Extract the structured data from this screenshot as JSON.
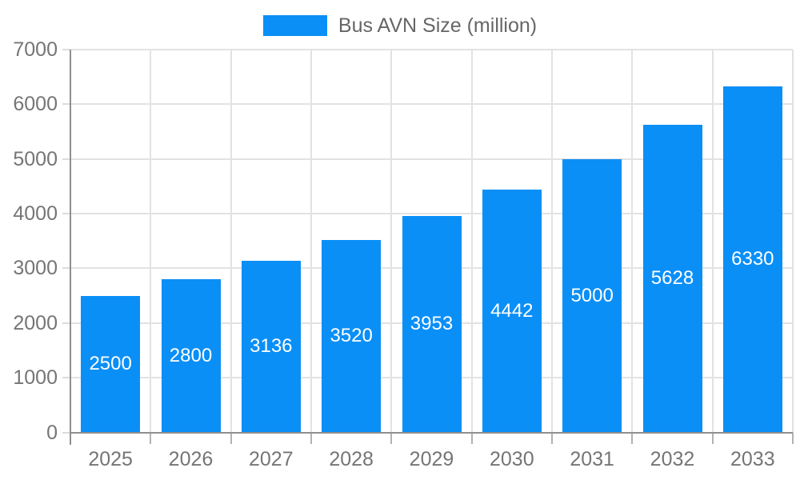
{
  "legend": {
    "label": "Bus AVN Size (million)"
  },
  "chart_data": {
    "type": "bar",
    "title": "Bus AVN Size (million)",
    "categories": [
      "2025",
      "2026",
      "2027",
      "2028",
      "2029",
      "2030",
      "2031",
      "2032",
      "2033"
    ],
    "series": [
      {
        "name": "Bus AVN Size (million)",
        "values": [
          2500,
          2800,
          3136,
          3520,
          3953,
          4442,
          5000,
          5628,
          6330
        ]
      }
    ],
    "xlabel": "",
    "ylabel": "",
    "ylim": [
      0,
      7000
    ],
    "yticks": [
      0,
      1000,
      2000,
      3000,
      4000,
      5000,
      6000,
      7000
    ],
    "grid": true,
    "legend_position": "top-center",
    "value_labels": "inside-center",
    "colors": {
      "bar": "#0a8ff7",
      "value_label": "#ffffff",
      "grid": "#e2e2e2",
      "axis": "#8f8f8f",
      "x_tick": "#b2b2b2",
      "y_tick": "#dcdcdc",
      "tick_label": "#757575",
      "legend_text": "#666666",
      "background": "#ffffff"
    }
  }
}
